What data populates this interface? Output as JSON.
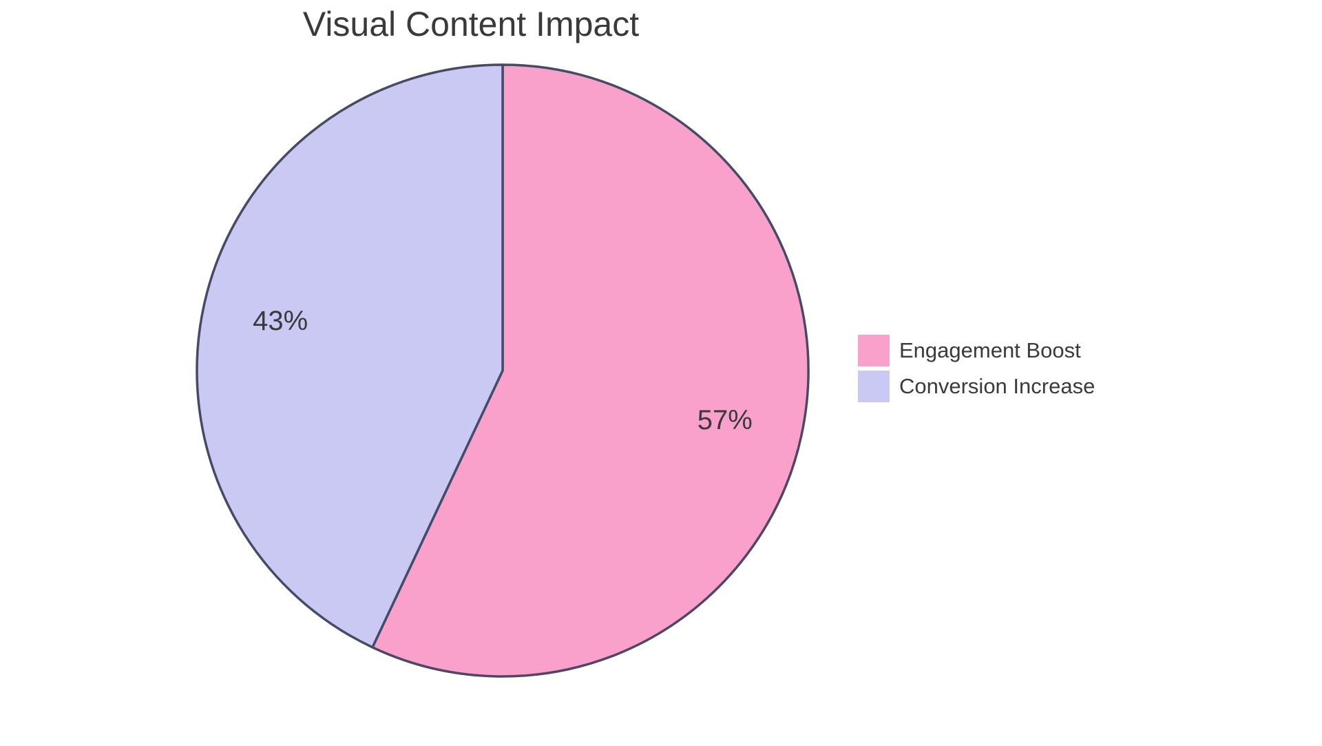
{
  "chart_data": {
    "type": "pie",
    "title": "Visual Content Impact",
    "labels": [
      "Engagement Boost",
      "Conversion Increase"
    ],
    "values": [
      57,
      43
    ],
    "slice_labels": [
      "57%",
      "43%"
    ],
    "colors": [
      "#F9A1CB",
      "#C9C9F4"
    ],
    "stroke_color": "#474A66",
    "stroke_width": 3.5,
    "label_color": "#3A3A3A",
    "title_color": "#3A3A3A",
    "background": "#FFFFFF",
    "start_angle_deg": -90,
    "direction": "clockwise",
    "legend_position": "right",
    "grid": false
  }
}
